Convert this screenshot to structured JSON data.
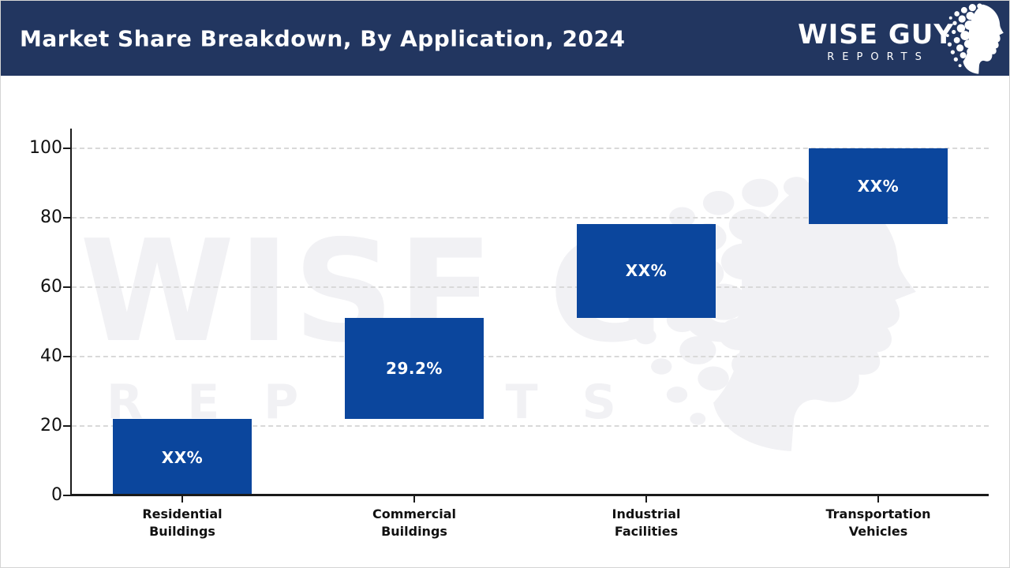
{
  "header": {
    "title": "Market Share Breakdown, By Application, 2024",
    "bg_color": "#223660",
    "logo": {
      "name_top": "WISE GUY",
      "name_bottom": "REPORTS"
    }
  },
  "watermark": {
    "line1": "WISE GUY",
    "line2": "REPORTS"
  },
  "chart_data": {
    "type": "bar",
    "subtype": "floating-waterfall-segments",
    "title": "Market Share Breakdown, By Application, 2024",
    "categories": [
      "Residential Buildings",
      "Commercial Buildings",
      "Industrial Facilities",
      "Transportation Vehicles"
    ],
    "category_lines": [
      [
        "Residential",
        "Buildings"
      ],
      [
        "Commercial",
        "Buildings"
      ],
      [
        "Industrial",
        "Facilities"
      ],
      [
        "Transportation",
        "Vehicles"
      ]
    ],
    "segments": [
      {
        "start": 0,
        "end": 22,
        "label": "XX%"
      },
      {
        "start": 22,
        "end": 51.2,
        "label": "29.2%"
      },
      {
        "start": 51.2,
        "end": 78,
        "label": "XX%"
      },
      {
        "start": 78,
        "end": 100,
        "label": "XX%"
      }
    ],
    "values_displayed": [
      "XX%",
      "29.2%",
      "XX%",
      "XX%"
    ],
    "ylim": [
      0,
      100
    ],
    "yticks": [
      0,
      20,
      40,
      60,
      80,
      100
    ],
    "grid": "horizontal-dashed",
    "legend": "none",
    "colors": {
      "bar": "#0b469d",
      "bar_label": "#ffffff",
      "grid_line": "#d9d9d9",
      "axis": "#1a1a1a",
      "header_bg": "#223660",
      "watermark": "#f1f1f4"
    }
  }
}
